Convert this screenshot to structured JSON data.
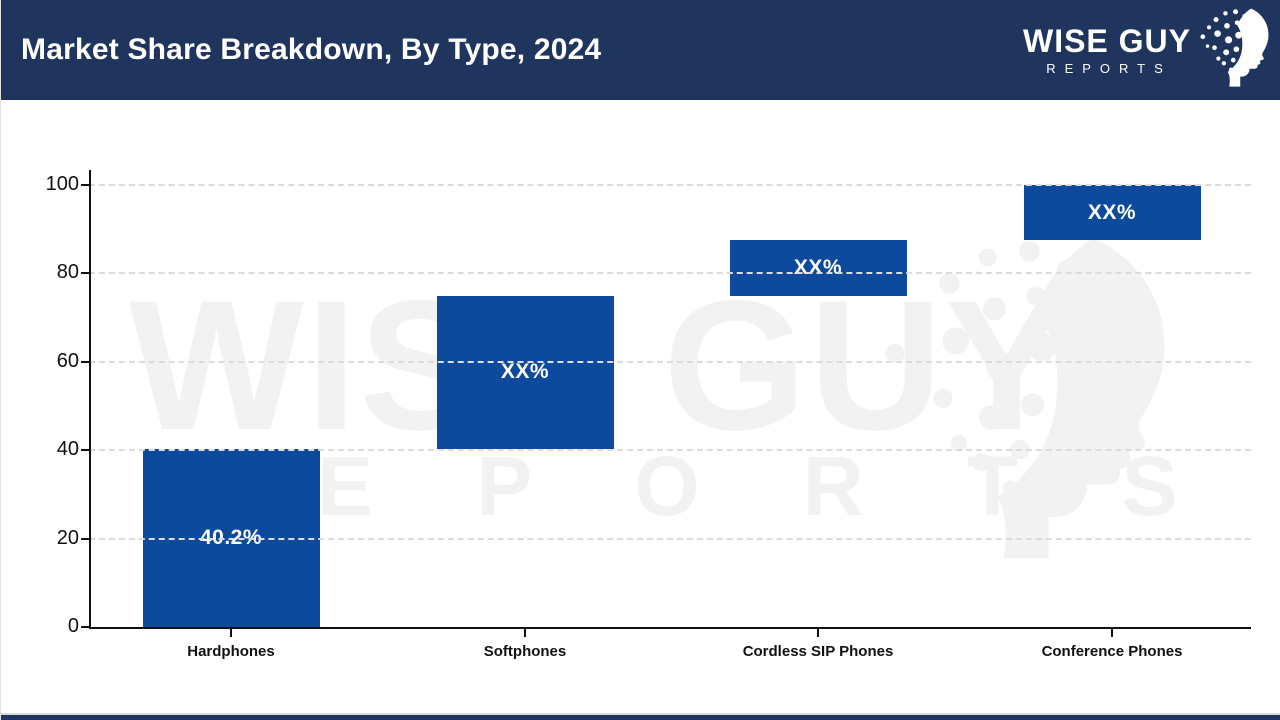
{
  "header": {
    "title": "Market Share Breakdown, By Type, 2024",
    "logo": {
      "name": "WISE GUY",
      "tagline": "REPORTS"
    }
  },
  "watermark": {
    "line1": "WISE GUY",
    "line2": "R E P O R T S"
  },
  "colors": {
    "header_bg": "#20355e",
    "bar": "#0d4a9e",
    "gridline": "#dcdcdc",
    "footer_bar": "#20355e"
  },
  "chart_data": {
    "type": "bar",
    "subtype": "waterfall",
    "title": "Market Share Breakdown, By Type, 2024",
    "categories": [
      "Hardphones",
      "Softphones",
      "Cordless SIP Phones",
      "Conference Phones"
    ],
    "segments": [
      {
        "start": 0,
        "end": 40.2
      },
      {
        "start": 40.2,
        "end": 75
      },
      {
        "start": 75,
        "end": 87.5
      },
      {
        "start": 87.5,
        "end": 100
      }
    ],
    "bar_labels": [
      "40.2%",
      "XX%",
      "XX%",
      "XX%"
    ],
    "yticks": [
      0,
      20,
      40,
      60,
      80,
      100
    ],
    "ylim": [
      0,
      105
    ],
    "grid": "horizontal-dashed",
    "legend": "none",
    "bar_color": "#0d4a9e"
  }
}
